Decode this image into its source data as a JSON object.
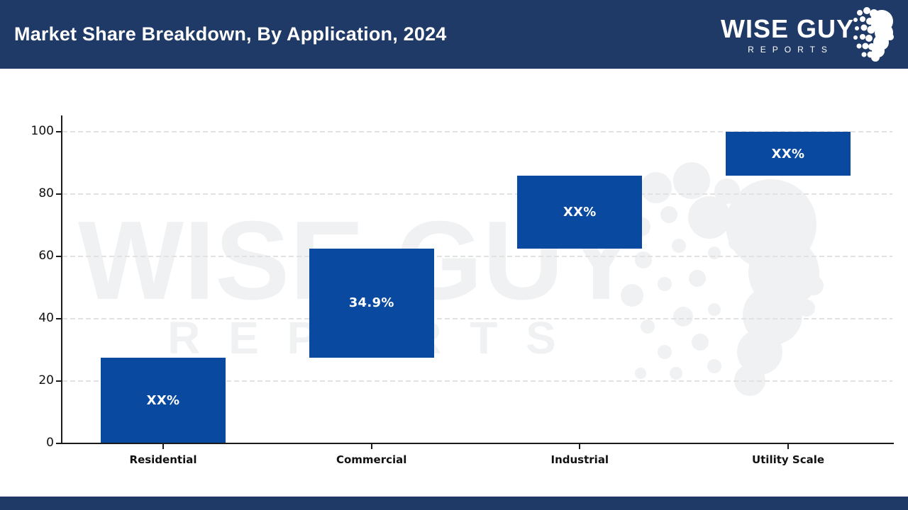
{
  "header": {
    "title": "Market Share Breakdown, By Application, 2024",
    "logo": {
      "line1": "WISE GUY",
      "line2": "REPORTS"
    }
  },
  "watermark": {
    "line1": "WISE GUY",
    "line2": "REPORTS"
  },
  "colors": {
    "header_navy": "#203a68",
    "bar_blue": "#0a49a0",
    "gridline_gray": "#e2e2e2",
    "watermark_gray": "#f0f1f3",
    "axis_black": "#1a1a1a",
    "bar_label_white": "#ffffff"
  },
  "chart_data": {
    "type": "bar",
    "subtype": "waterfall",
    "title": "Market Share Breakdown, By Application, 2024",
    "categories": [
      "Residential",
      "Commercial",
      "Industrial",
      "Utility Scale"
    ],
    "segments": [
      {
        "category": "Residential",
        "start": 0,
        "end": 27.6,
        "label": "XX%"
      },
      {
        "category": "Commercial",
        "start": 27.6,
        "end": 62.5,
        "label": "34.9%"
      },
      {
        "category": "Industrial",
        "start": 62.5,
        "end": 85.8,
        "label": "XX%"
      },
      {
        "category": "Utility Scale",
        "start": 85.8,
        "end": 100,
        "label": "XX%"
      }
    ],
    "xlabel": "",
    "ylabel": "",
    "yticks": [
      0,
      20,
      40,
      60,
      80,
      100
    ],
    "ylim": [
      0,
      105
    ],
    "grid": "horizontal-dashed",
    "legend": "none"
  }
}
